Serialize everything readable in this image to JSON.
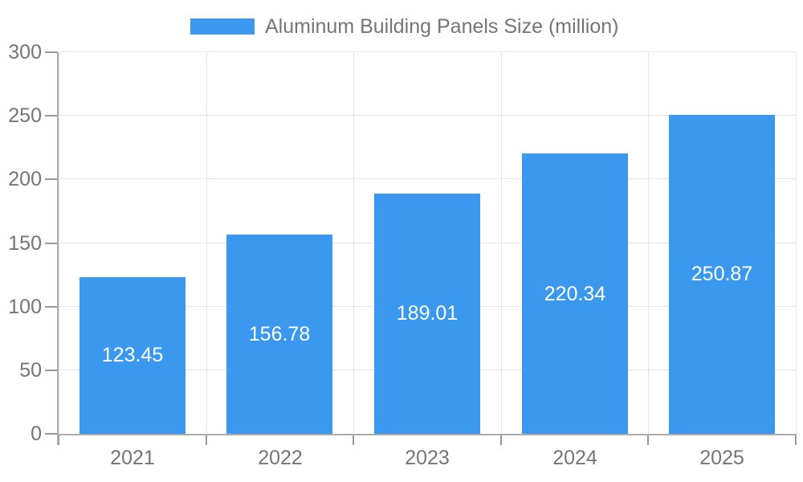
{
  "chart_data": {
    "type": "bar",
    "title": "Aluminum Building Panels Size (million)",
    "categories": [
      "2021",
      "2022",
      "2023",
      "2024",
      "2025"
    ],
    "values": [
      123.45,
      156.78,
      189.01,
      220.34,
      250.87
    ],
    "value_labels": [
      "123.45",
      "156.78",
      "189.01",
      "220.34",
      "250.87"
    ],
    "ylim": [
      0,
      300
    ],
    "yticks": [
      0,
      50,
      100,
      150,
      200,
      250,
      300
    ],
    "ytick_labels": [
      "0",
      "50",
      "100",
      "150",
      "200",
      "250",
      "300"
    ],
    "grid": "horizontal lines every 50 units, vertical lines at category boundaries",
    "legend_position": "top-center",
    "xlabel": "",
    "ylabel": "",
    "colors": {
      "bar": "#3a99ee",
      "value_label": "#ffffff",
      "axis_text": "#757575",
      "grid_line": "#e4e4e4",
      "axis_line": "#ababab",
      "tick": "#999999",
      "background": "#ffffff"
    }
  }
}
